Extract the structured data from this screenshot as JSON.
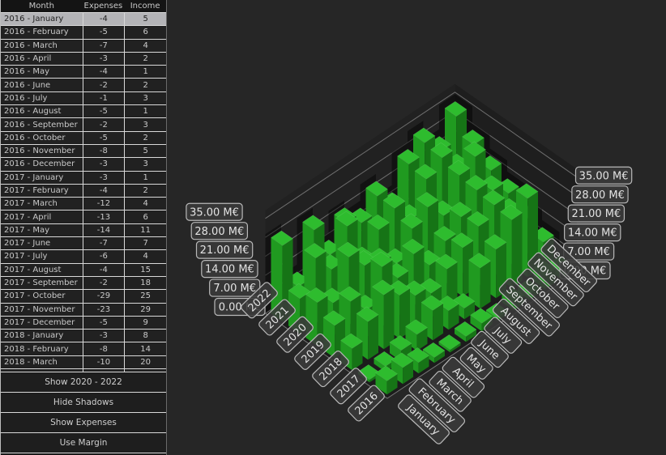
{
  "table": {
    "columns": [
      "Month",
      "Expenses",
      "Income"
    ],
    "rows": [
      {
        "month": "2016 - January",
        "expenses": -4,
        "income": 5,
        "selected": true
      },
      {
        "month": "2016 - February",
        "expenses": -5,
        "income": 6
      },
      {
        "month": "2016 - March",
        "expenses": -7,
        "income": 4
      },
      {
        "month": "2016 - April",
        "expenses": -3,
        "income": 2
      },
      {
        "month": "2016 - May",
        "expenses": -4,
        "income": 1
      },
      {
        "month": "2016 - June",
        "expenses": -2,
        "income": 2
      },
      {
        "month": "2016 - July",
        "expenses": -1,
        "income": 3
      },
      {
        "month": "2016 - August",
        "expenses": -5,
        "income": 1
      },
      {
        "month": "2016 - September",
        "expenses": -2,
        "income": 3
      },
      {
        "month": "2016 - October",
        "expenses": -5,
        "income": 2
      },
      {
        "month": "2016 - November",
        "expenses": -8,
        "income": 5
      },
      {
        "month": "2016 - December",
        "expenses": -3,
        "income": 3
      },
      {
        "month": "2017 - January",
        "expenses": -3,
        "income": 1
      },
      {
        "month": "2017 - February",
        "expenses": -4,
        "income": 2
      },
      {
        "month": "2017 - March",
        "expenses": -12,
        "income": 4
      },
      {
        "month": "2017 - April",
        "expenses": -13,
        "income": 6
      },
      {
        "month": "2017 - May",
        "expenses": -14,
        "income": 11
      },
      {
        "month": "2017 - June",
        "expenses": -7,
        "income": 7
      },
      {
        "month": "2017 - July",
        "expenses": -6,
        "income": 4
      },
      {
        "month": "2017 - August",
        "expenses": -4,
        "income": 15
      },
      {
        "month": "2017 - September",
        "expenses": -2,
        "income": 18
      },
      {
        "month": "2017 - October",
        "expenses": -29,
        "income": 25
      },
      {
        "month": "2017 - November",
        "expenses": -23,
        "income": 29
      },
      {
        "month": "2017 - December",
        "expenses": -5,
        "income": 9
      },
      {
        "month": "2018 - January",
        "expenses": -3,
        "income": 8
      },
      {
        "month": "2018 - February",
        "expenses": -8,
        "income": 14
      },
      {
        "month": "2018 - March",
        "expenses": -10,
        "income": 20
      }
    ]
  },
  "buttons": [
    "Show 2020 - 2022",
    "Hide Shadows",
    "Show Expenses",
    "Use Margin"
  ],
  "chart_data": {
    "type": "bar",
    "variant": "3d-columns",
    "title": "",
    "unit": "M€",
    "value_axis": {
      "min": 0,
      "max": 35,
      "step": 7,
      "tick_labels": [
        "0.00 M€",
        "7.00 M€",
        "14.00 M€",
        "21.00 M€",
        "28.00 M€",
        "35.00 M€"
      ],
      "shown_on": "left-and-right"
    },
    "row_axis": {
      "name": "year",
      "categories": [
        "2016",
        "2017",
        "2018",
        "2019",
        "2020",
        "2021",
        "2022"
      ]
    },
    "column_axis": {
      "name": "month",
      "categories": [
        "January",
        "February",
        "March",
        "April",
        "May",
        "June",
        "July",
        "August",
        "September",
        "October",
        "November",
        "December"
      ]
    },
    "series": [
      {
        "name": "2016",
        "values": [
          5,
          6,
          4,
          2,
          1,
          2,
          3,
          1,
          3,
          2,
          5,
          3
        ]
      },
      {
        "name": "2017",
        "values": [
          1,
          2,
          4,
          6,
          11,
          7,
          4,
          15,
          18,
          25,
          29,
          9
        ]
      },
      {
        "name": "2018",
        "values": [
          8,
          14,
          20,
          16,
          12,
          9,
          14,
          18,
          22,
          26,
          19,
          13
        ]
      },
      {
        "name": "2019",
        "values": [
          12,
          17,
          10,
          22,
          14,
          19,
          11,
          16,
          21,
          27,
          23,
          18
        ]
      },
      {
        "name": "2020",
        "values": [
          16,
          12,
          25,
          18,
          15,
          11,
          20,
          24,
          17,
          28,
          31,
          22
        ]
      },
      {
        "name": "2021",
        "values": [
          13,
          24,
          16,
          28,
          11,
          19,
          23,
          15,
          26,
          30,
          22,
          27
        ]
      },
      {
        "name": "2022",
        "values": [
          28,
          9,
          26,
          13,
          21,
          17,
          23,
          15,
          27,
          31,
          24,
          33
        ]
      }
    ],
    "shadows_enabled": true,
    "legend_position": "none",
    "grid": true,
    "colors": {
      "bar_top": "#2ebc2e",
      "bar_left": "#209a20",
      "bar_right": "#167416",
      "wall": "#212121",
      "wall_right": "#1e1e1e",
      "floor": "#1c1c1c",
      "grid_line": "#8a8a8a",
      "label_text": "#e3e3e3",
      "label_border": "#b9b9b9",
      "label_bg": "#3a3a3a",
      "background": "#262626"
    }
  },
  "colors": {
    "selected_row_bg": "#b4b4b7",
    "row_bg": "#212121",
    "row_text": "#c9c9c9",
    "grid_border": "#d9d9d9"
  }
}
